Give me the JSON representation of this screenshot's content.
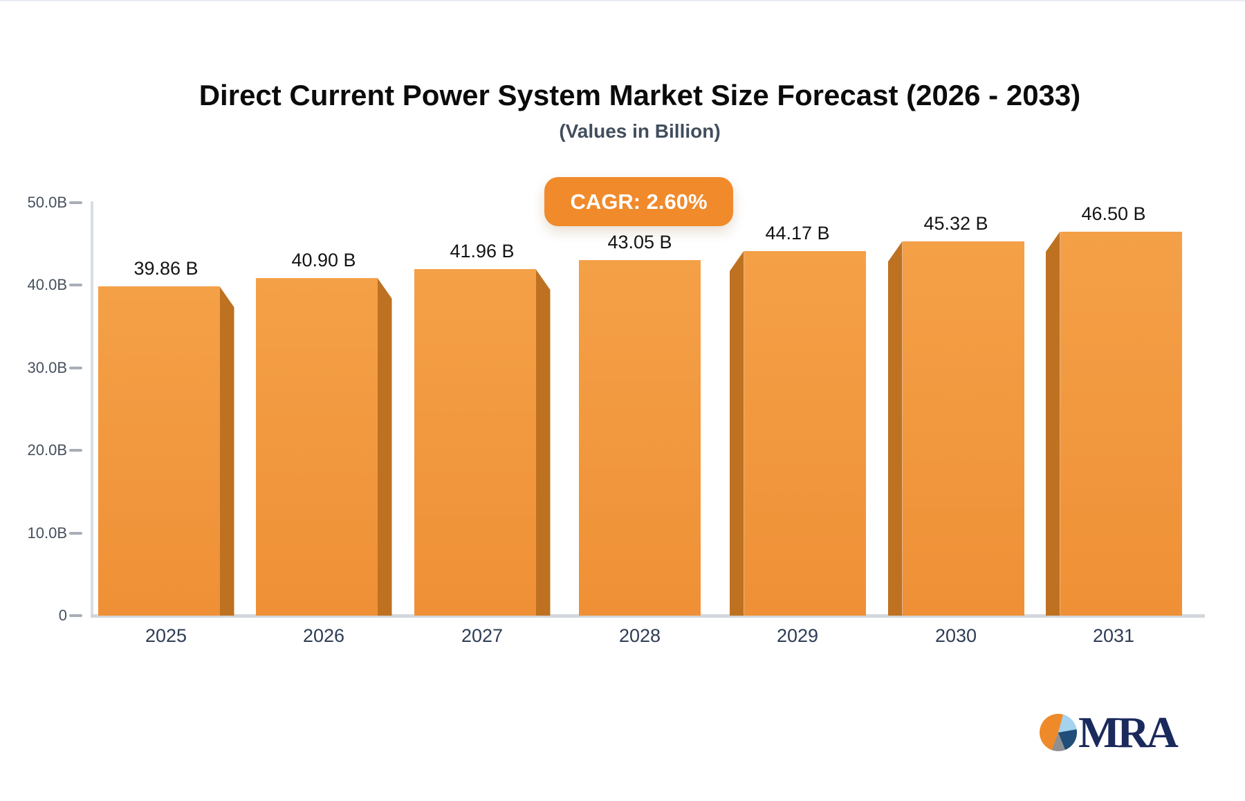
{
  "header": {
    "title": "Direct Current Power System Market Size Forecast (2026 - 2033)",
    "subtitle": "(Values in Billion)"
  },
  "badge": {
    "label": "CAGR: 2.60%",
    "color": "#f18a2b"
  },
  "logo": {
    "text": "MRA"
  },
  "chart_data": {
    "type": "bar",
    "title": "Direct Current Power System Market Size Forecast (2026 - 2033)",
    "subtitle": "(Values in Billion)",
    "annotation": "CAGR: 2.60%",
    "categories": [
      "2025",
      "2026",
      "2027",
      "2028",
      "2029",
      "2030",
      "2031"
    ],
    "values": [
      39.86,
      40.9,
      41.96,
      43.05,
      44.17,
      45.32,
      46.5
    ],
    "value_labels": [
      "39.86 B",
      "40.90 B",
      "41.96 B",
      "43.05 B",
      "44.17 B",
      "45.32 B",
      "46.50 B"
    ],
    "y_ticks": [
      {
        "label": "50.0B",
        "value": 50
      },
      {
        "label": "40.0B",
        "value": 40
      },
      {
        "label": "30.0B",
        "value": 30
      },
      {
        "label": "20.0B",
        "value": 20
      },
      {
        "label": "10.0B",
        "value": 10
      },
      {
        "label": "0",
        "value": 0
      }
    ],
    "ylim": [
      0,
      50
    ],
    "grid": false,
    "legend": "none",
    "bar_color_top": "#f4a047",
    "bar_color_bottom": "#ef9036",
    "bar_side_color": "#be7121",
    "axis_color": "#d9dde3"
  }
}
